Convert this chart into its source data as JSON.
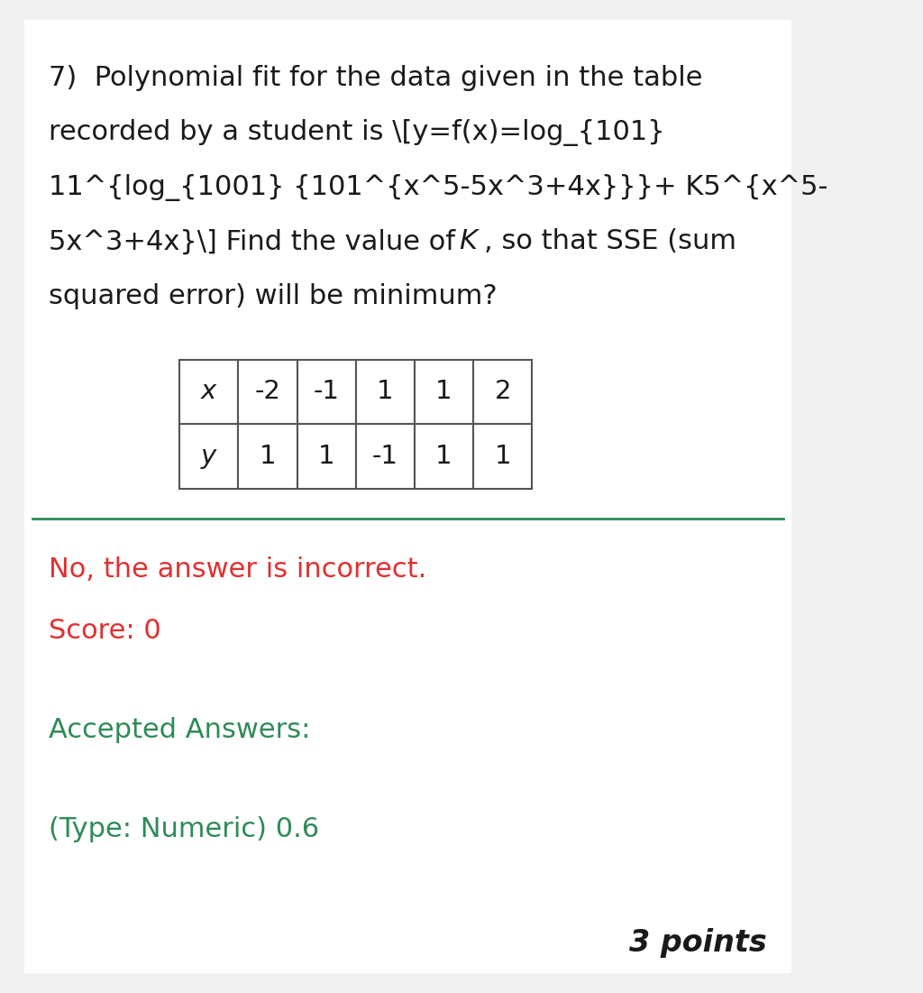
{
  "background_color": "#ffffff",
  "page_bg_color": "#f0f0f0",
  "separator_color": "#2e8b57",
  "incorrect_text": "No, the answer is incorrect.",
  "incorrect_color": "#e03030",
  "score_text": "Score: 0",
  "score_color": "#e03030",
  "accepted_text": "Accepted Answers:",
  "accepted_color": "#2e8b57",
  "type_text": "(Type: Numeric) 0.6",
  "type_color": "#2e8b57",
  "points_text": "3 points",
  "points_color": "#1a1a1a",
  "main_text_color": "#1a1a1a",
  "main_font_size": 22,
  "table_border_color": "#555555",
  "table_cols": [
    "x",
    "-2",
    "-1",
    "1",
    "1",
    "2"
  ],
  "table_row2": [
    "y",
    "1",
    "1",
    "-1",
    "1",
    "1"
  ]
}
